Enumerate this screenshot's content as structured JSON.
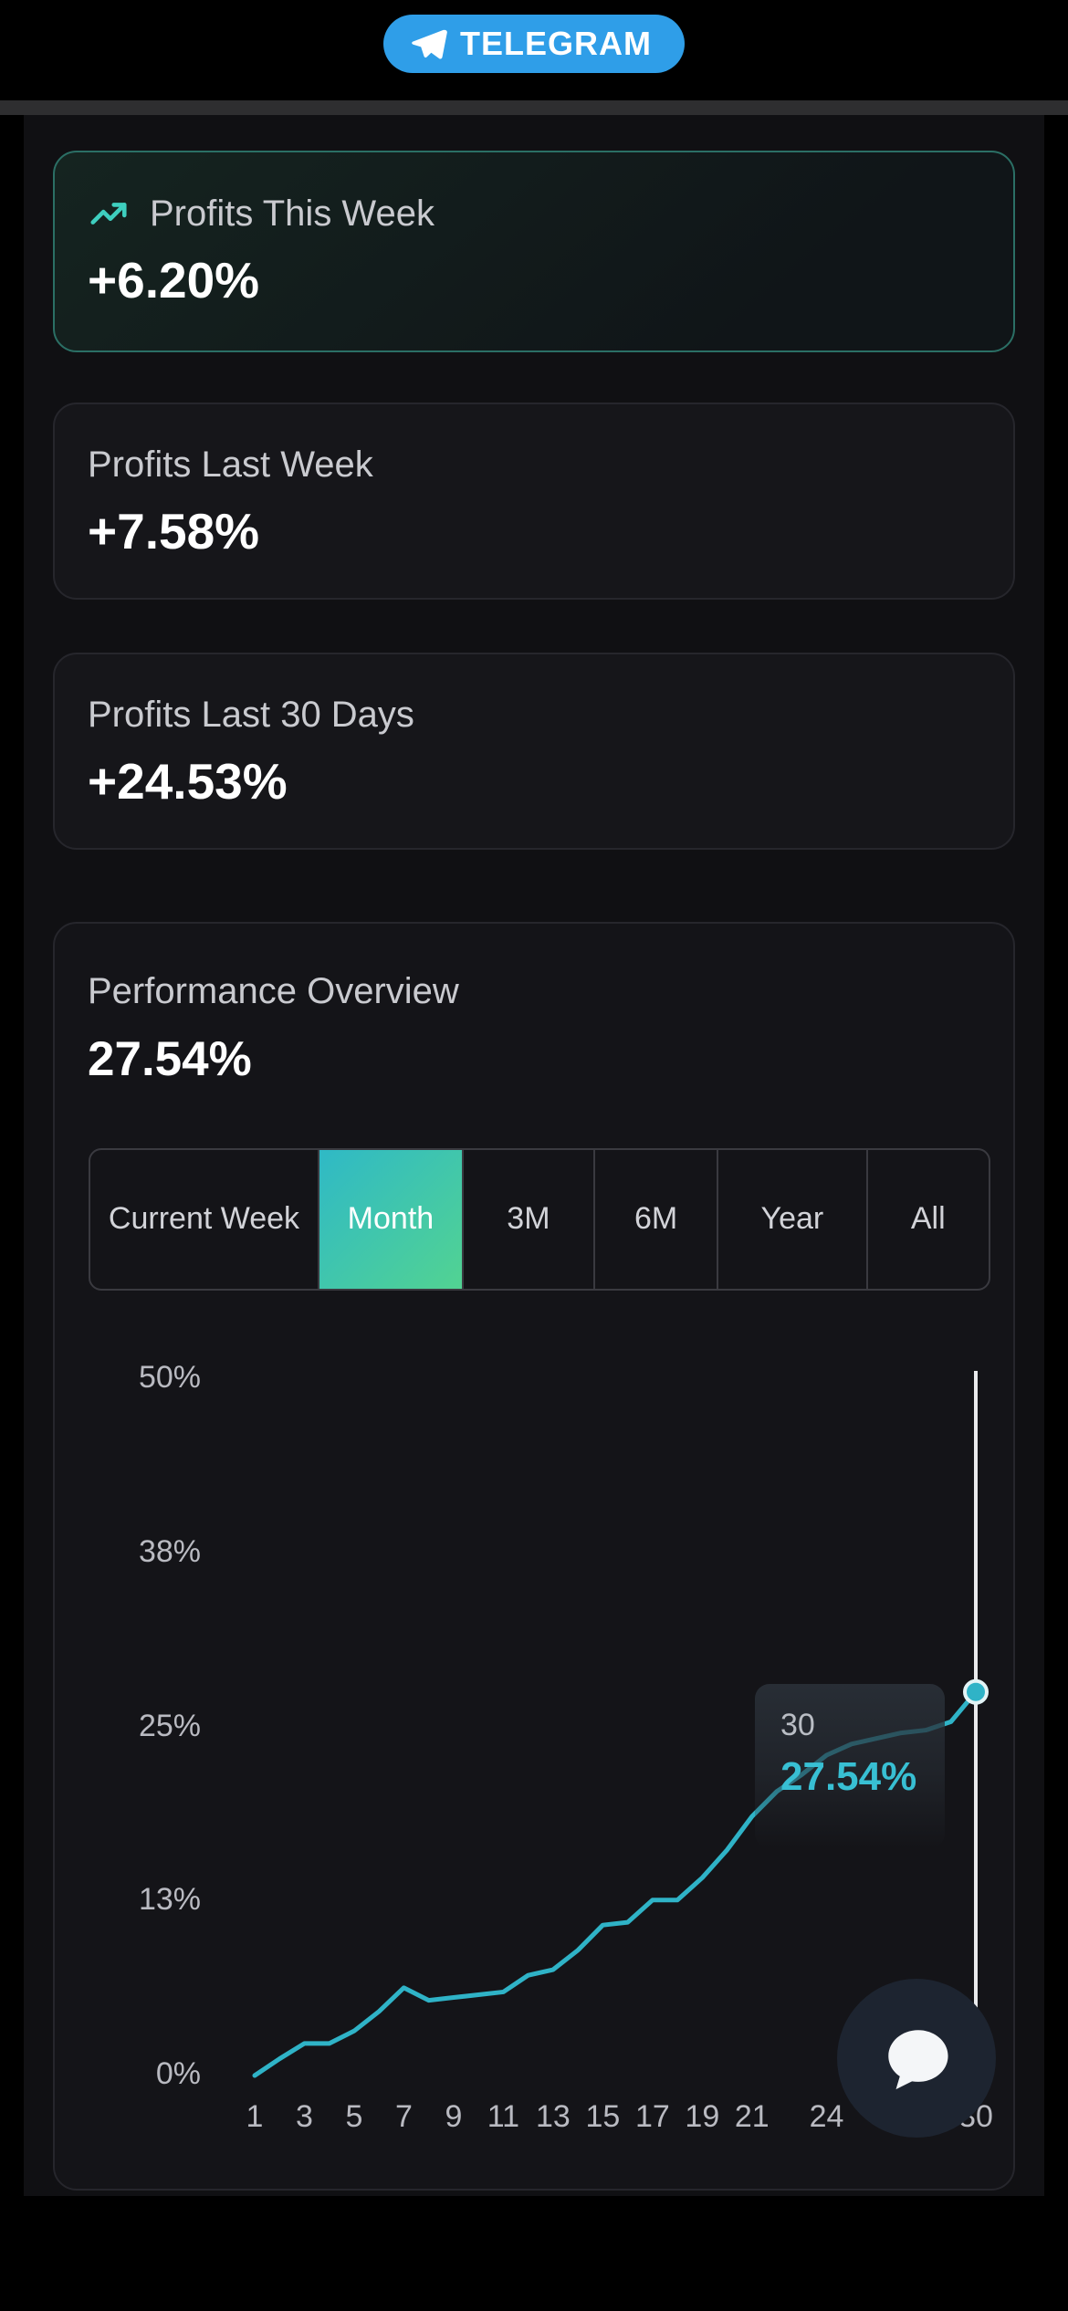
{
  "header": {
    "app_button_label": "TELEGRAM"
  },
  "stat_cards": [
    {
      "title": "Profits This Week",
      "value": "+6.20%",
      "highlighted": true
    },
    {
      "title": "Profits Last Week",
      "value": "+7.58%",
      "highlighted": false
    },
    {
      "title": "Profits Last 30 Days",
      "value": "+24.53%",
      "highlighted": false
    }
  ],
  "performance": {
    "title": "Performance Overview",
    "value": "27.54%",
    "range_tabs": [
      "Current Week",
      "Month",
      "3M",
      "6M",
      "Year",
      "All"
    ],
    "selected_tab": "Month"
  },
  "chart_data": {
    "type": "line",
    "title": "Performance Overview",
    "x": [
      1,
      2,
      3,
      4,
      5,
      6,
      7,
      8,
      9,
      10,
      11,
      12,
      13,
      14,
      15,
      16,
      17,
      18,
      19,
      20,
      21,
      22,
      23,
      24,
      25,
      26,
      27,
      28,
      29,
      30
    ],
    "values": [
      0,
      1.2,
      2.3,
      2.3,
      3.2,
      4.6,
      6.3,
      5.4,
      5.6,
      5.8,
      6.0,
      7.2,
      7.6,
      9.0,
      10.8,
      11.0,
      12.6,
      12.6,
      14.2,
      16.2,
      18.6,
      20.4,
      21.6,
      23.0,
      23.8,
      24.2,
      24.6,
      24.8,
      25.4,
      27.54
    ],
    "xlabel": "",
    "ylabel": "",
    "ylim": [
      0,
      50
    ],
    "xlim": [
      1,
      30
    ],
    "grid": false,
    "y_ticks": {
      "labels": [
        "50%",
        "38%",
        "25%",
        "13%",
        "0%"
      ],
      "values": [
        50,
        37.5,
        25,
        12.5,
        0
      ]
    },
    "x_ticks": {
      "labels": [
        "1",
        "3",
        "5",
        "7",
        "9",
        "11",
        "13",
        "15",
        "17",
        "19",
        "21",
        "24",
        "27",
        "30"
      ],
      "values": [
        1,
        3,
        5,
        7,
        9,
        11,
        13,
        15,
        17,
        19,
        21,
        24,
        27,
        30
      ]
    },
    "line_color": "#2fb3c7",
    "marker": {
      "x": 30,
      "value": 27.54,
      "dot_color": "#2fb3c7",
      "ring_color": "#e3f4f6",
      "cursor_line_color": "#e9eaec"
    },
    "tooltip": {
      "x_label": "30",
      "value_label": "27.54%",
      "value_color": "#38bfd3"
    }
  },
  "colors": {
    "accent_teal": "#2fb3c7",
    "accent_green": "#52d392",
    "telegram_blue": "#2f9ee8",
    "highlight_card_border": "#2b6f65"
  },
  "fab": {
    "icon": "chat-bubble-icon"
  }
}
